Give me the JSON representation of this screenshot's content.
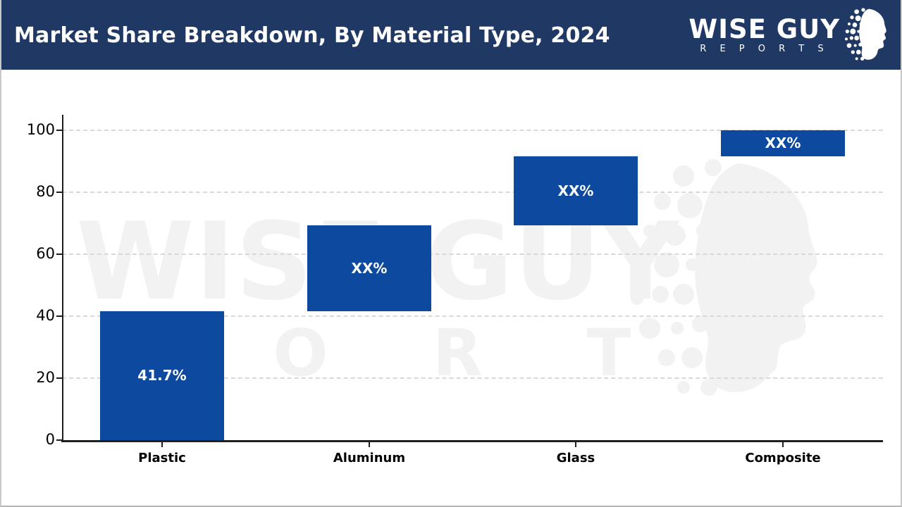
{
  "header": {
    "title": "Market Share Breakdown, By Material Type, 2024",
    "logo": {
      "line1": "WISE GUY",
      "line2": "R E P O R T S",
      "icon": "face-profile-dots-icon"
    }
  },
  "watermark": {
    "line1": "WISE GUY",
    "line2": "P O R T S",
    "icon": "face-profile-dots-watermark"
  },
  "colors": {
    "header_bg": "#203864",
    "bar": "#0d4a9f",
    "grid": "#d8d8d8",
    "axis": "#1f1f1f",
    "watermark": "#f2f2f2",
    "bar_label": "#ffffff"
  },
  "chart_data": {
    "type": "bar",
    "subtype": "waterfall",
    "title": "Market Share Breakdown, By Material Type, 2024",
    "xlabel": "",
    "ylabel": "",
    "categories": [
      "Plastic",
      "Aluminum",
      "Glass",
      "Composite"
    ],
    "segments": [
      {
        "category": "Plastic",
        "start": 0,
        "end": 41.7,
        "label": "41.7%"
      },
      {
        "category": "Aluminum",
        "start": 41.7,
        "end": 69.4,
        "label": "XX%"
      },
      {
        "category": "Glass",
        "start": 69.4,
        "end": 91.6,
        "label": "XX%"
      },
      {
        "category": "Composite",
        "start": 91.6,
        "end": 100,
        "label": "XX%"
      }
    ],
    "y_ticks": [
      0,
      20,
      40,
      60,
      80,
      100
    ],
    "y_tick_labels": [
      "0",
      "20",
      "40",
      "60",
      "80",
      "100"
    ],
    "ylim": [
      0,
      105
    ],
    "grid": "horizontal-dashed",
    "legend": "none"
  }
}
